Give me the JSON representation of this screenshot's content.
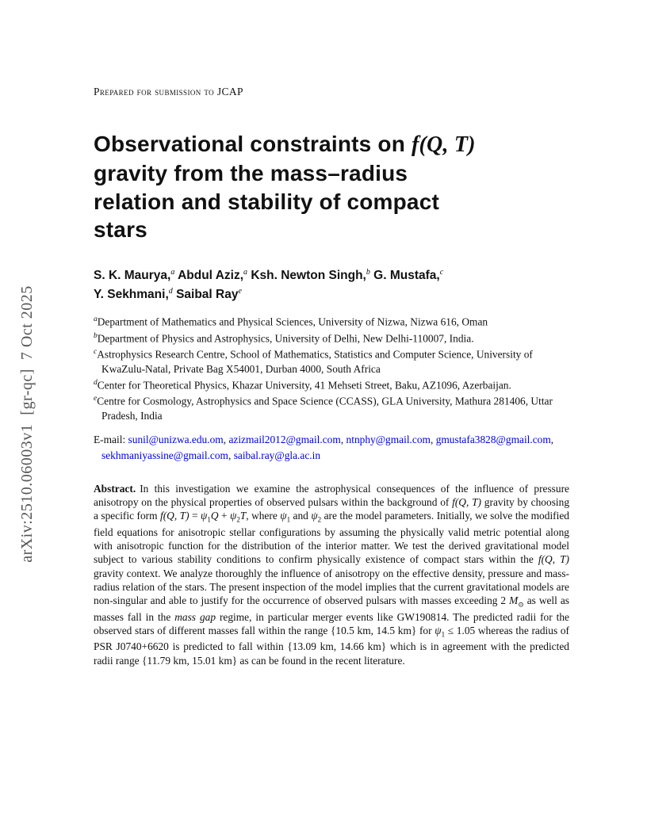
{
  "colors": {
    "link_blue": "#0000e0",
    "watermark_gray": "#555555"
  },
  "watermark": "arXiv:2510.06003v1  [gr-qc]  7 Oct 2025",
  "header": {
    "prepared_for": "Prepared for submission to JCAP"
  },
  "title": {
    "plain": "Observational constraints on f(Q, T) gravity from the mass–radius relation and stability of compact stars",
    "segments": [
      {
        "t": "Observational constraints on "
      },
      {
        "t": "f(Q, T)",
        "c": "tmath"
      },
      {
        "e": "br"
      },
      {
        "t": "gravity from the mass–radius"
      },
      {
        "e": "br"
      },
      {
        "t": "relation and stability of compact"
      },
      {
        "e": "br"
      },
      {
        "t": "stars"
      }
    ]
  },
  "authors": {
    "plain": "S. K. Maurya,a Abdul Aziz,a Ksh. Newton Singh,b G. Mustafa,c Y. Sekhmani,d Saibal Raye",
    "segments": [
      {
        "t": "S. K. Maurya,"
      },
      {
        "t": "a",
        "e": "sup",
        "c": "au-sup"
      },
      {
        "t": " Abdul Aziz,"
      },
      {
        "t": "a",
        "e": "sup",
        "c": "au-sup"
      },
      {
        "t": " Ksh. Newton Singh,"
      },
      {
        "t": "b",
        "e": "sup",
        "c": "au-sup"
      },
      {
        "t": " G. Mustafa,"
      },
      {
        "t": "c",
        "e": "sup",
        "c": "au-sup"
      },
      {
        "e": "br"
      },
      {
        "t": "Y. Sekhmani,"
      },
      {
        "t": "d",
        "e": "sup",
        "c": "au-sup"
      },
      {
        "t": " Saibal Ray"
      },
      {
        "t": "e",
        "e": "sup",
        "c": "au-sup"
      }
    ]
  },
  "affiliations": [
    {
      "sup": "a",
      "text": "Department of Mathematics and Physical Sciences, University of Nizwa, Nizwa 616, Oman"
    },
    {
      "sup": "b",
      "text": "Department of Physics and Astrophysics, University of Delhi, New Delhi-110007, India."
    },
    {
      "sup": "c",
      "text": "Astrophysics Research Centre, School of Mathematics, Statistics and Computer Science, University of KwaZulu-Natal, Private Bag X54001, Durban 4000, South Africa"
    },
    {
      "sup": "d",
      "text": "Center for Theoretical Physics, Khazar University, 41 Mehseti Street, Baku, AZ1096, Azerbaijan."
    },
    {
      "sup": "e",
      "text": "Centre for Cosmology, Astrophysics and Space Science (CCASS), GLA University, Mathura 281406, Uttar Pradesh, India"
    }
  ],
  "email": {
    "label": "E-mail:",
    "links": [
      {
        "text": "sunil@unizwa.edu.om",
        "sep": ","
      },
      {
        "text": "azizmail2012@gmail.com",
        "sep": ","
      },
      {
        "text": "ntnphy@gmail.com",
        "sep": ","
      },
      {
        "text": "gmustafa3828@gmail.com",
        "sep": ","
      },
      {
        "text": "sekhmaniyassine@gmail.com",
        "sep": ","
      },
      {
        "text": "saibal.ray@gla.ac.in",
        "sep": ""
      }
    ]
  },
  "abstract": {
    "label": "Abstract.",
    "segments": [
      {
        "t": "In this investigation we examine the astrophysical consequences of the influence of pressure anisotropy on the physical properties of observed pulsars within the background of "
      },
      {
        "t": "f(Q, T)",
        "c": "mi"
      },
      {
        "t": " gravity by choosing a specific form "
      },
      {
        "t": "f(Q, T)",
        "c": "mi"
      },
      {
        "t": " = "
      },
      {
        "t": "ψ",
        "c": "mi"
      },
      {
        "t": "1",
        "e": "sub"
      },
      {
        "t": "Q",
        "c": "mi"
      },
      {
        "t": " + "
      },
      {
        "t": "ψ",
        "c": "mi"
      },
      {
        "t": "2",
        "e": "sub"
      },
      {
        "t": "T",
        "c": "mi"
      },
      {
        "t": ", where "
      },
      {
        "t": "ψ",
        "c": "mi"
      },
      {
        "t": "1",
        "e": "sub"
      },
      {
        "t": " and "
      },
      {
        "t": "ψ",
        "c": "mi"
      },
      {
        "t": "2",
        "e": "sub"
      },
      {
        "t": " are the model parameters.  Initially, we solve the modified field equations for anisotropic stellar configurations by assuming the physically valid metric potential along with anisotropic function for the distribution of the interior matter. We test the derived gravitational model subject to various stability conditions to confirm physically existence of compact stars within the "
      },
      {
        "t": "f(Q, T)",
        "c": "mi"
      },
      {
        "t": " gravity context.  We analyze thoroughly the influence of anisotropy on the effective density, pressure and mass-radius relation of the stars.  The present inspection of the model implies that the current gravitational models are non-singular and able to justify for the occurrence of observed pulsars with masses exceeding 2 "
      },
      {
        "t": "M",
        "c": "mi"
      },
      {
        "t": "⊙",
        "e": "sub"
      },
      {
        "t": " as well as masses fall in the "
      },
      {
        "t": "mass gap",
        "c": "mi"
      },
      {
        "t": " regime, in particular merger events like GW190814. The predicted radii for the observed stars of different masses fall within the range {10.5 km, 14.5 km} for "
      },
      {
        "t": "ψ",
        "c": "mi"
      },
      {
        "t": "1",
        "e": "sub"
      },
      {
        "t": " ≤ 1.05 whereas the radius of PSR J0740+6620 is predicted to fall within {13.09 km, 14.66 km} which is in agreement with the predicted radii range {11.79 km, 15.01 km} as can be found in the recent literature."
      }
    ]
  }
}
